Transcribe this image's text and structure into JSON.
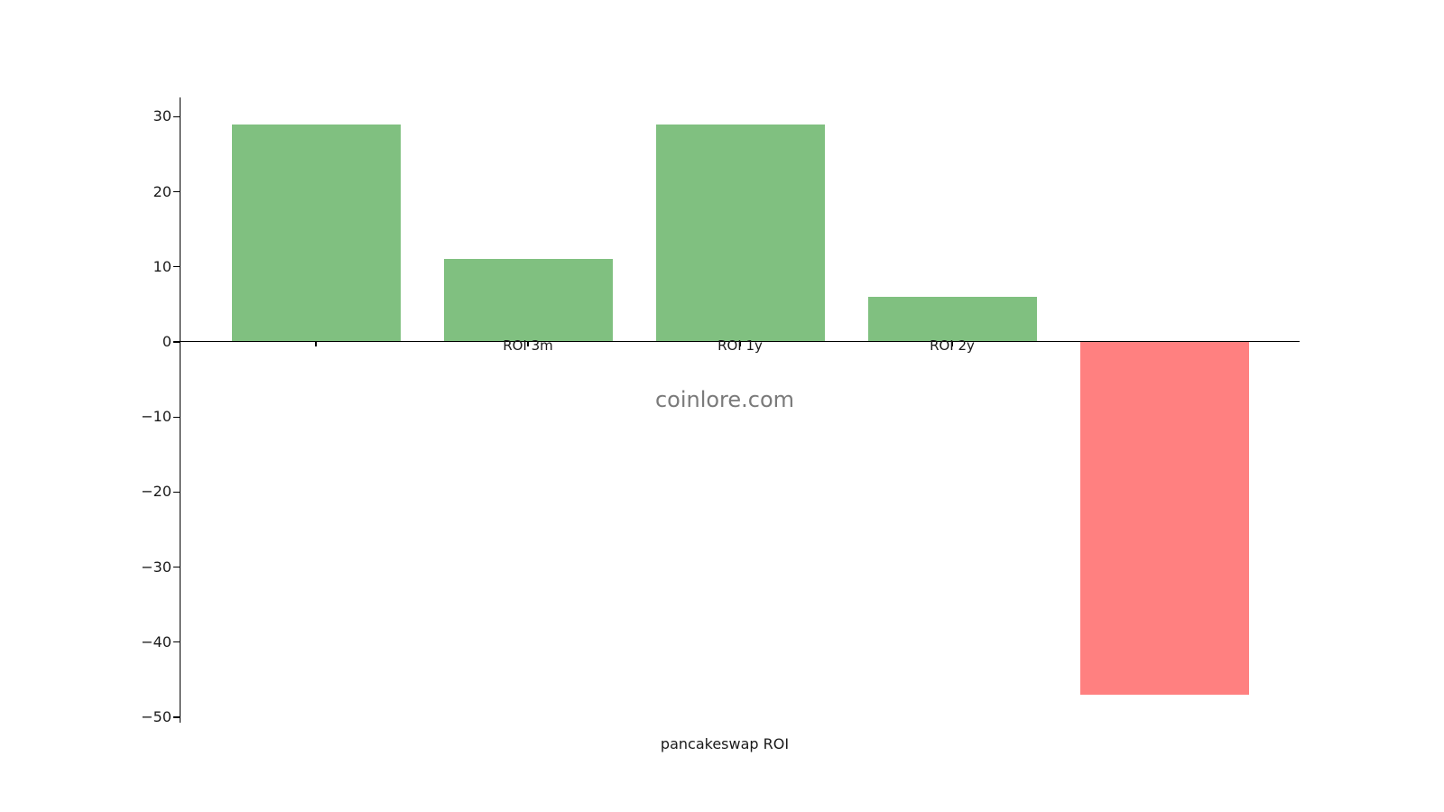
{
  "page": {
    "background_color": "#ffffff"
  },
  "chart_data": {
    "type": "bar",
    "title": "",
    "xlabel": "pancakeswap ROI",
    "ylabel": "",
    "categories": [
      "",
      "ROI 3m",
      "ROI 1y",
      "ROI 2y",
      ""
    ],
    "values": [
      29,
      11,
      29,
      6,
      -47
    ],
    "series": [
      {
        "name": "pancakeswap ROI",
        "values": [
          29,
          11,
          29,
          6,
          -47
        ]
      }
    ],
    "positive_color": "#80c080",
    "negative_color": "#ff8080",
    "axis_color": "#000000",
    "text_color": "#1a1a1a",
    "yticks": [
      30,
      20,
      10,
      0,
      -10,
      -20,
      -30,
      -40,
      -50
    ],
    "ytick_labels": [
      "30",
      "20",
      "10",
      "0",
      "−10",
      "−20",
      "−30",
      "−40",
      "−50"
    ],
    "ylim": [
      -50.7,
      32.6
    ],
    "grid": false,
    "legend": null,
    "watermark": "coinlore.com",
    "watermark_color": "#7a7a7a"
  }
}
